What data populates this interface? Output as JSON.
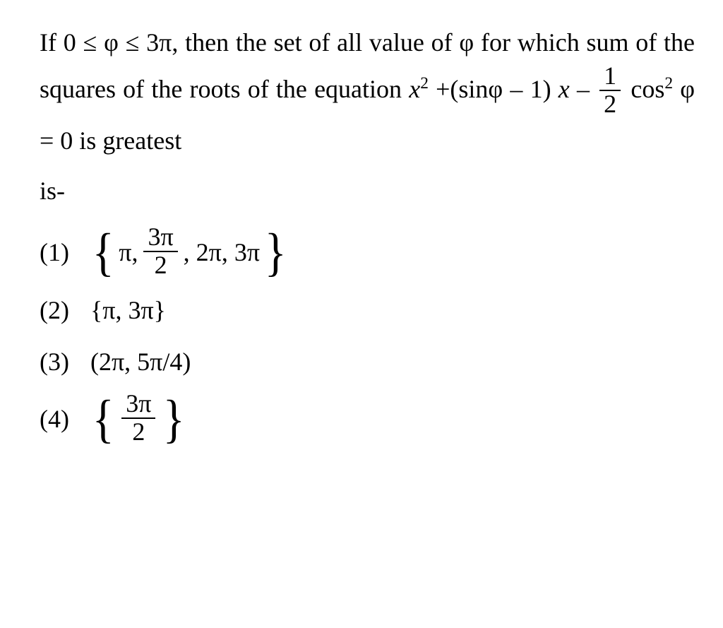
{
  "typography": {
    "font_family": "Times New Roman",
    "font_size_pt": 27,
    "color": "#000000",
    "line_height": 1.7
  },
  "problem": {
    "intro_part1": "If",
    "range_text": "0 ≤ φ ≤ 3π",
    "intro_part2": ", then the set of all value of φ for",
    "line2": "which sum of the squares of the roots of the",
    "equation_label": "equation",
    "eq_lhs1": "x",
    "exp2": "2",
    "eq_plus_open": " +(sinφ – 1) ",
    "eq_x": "x",
    "frac_minus": " – ",
    "frac_num": "1",
    "frac_den": "2",
    "cos_part": " cos",
    "cos_exp": "2",
    "cos_arg": " φ = 0 is greatest",
    "is_text": "is-"
  },
  "options": [
    {
      "num": "(1)",
      "items": [
        "π,",
        "3π",
        "2",
        ", 2π, 3π"
      ]
    },
    {
      "num": "(2)",
      "text": "{π, 3π}"
    },
    {
      "num": "(3)",
      "text": "(2π, 5π/4)"
    },
    {
      "num": "(4)",
      "items": [
        "3π",
        "2"
      ]
    }
  ]
}
